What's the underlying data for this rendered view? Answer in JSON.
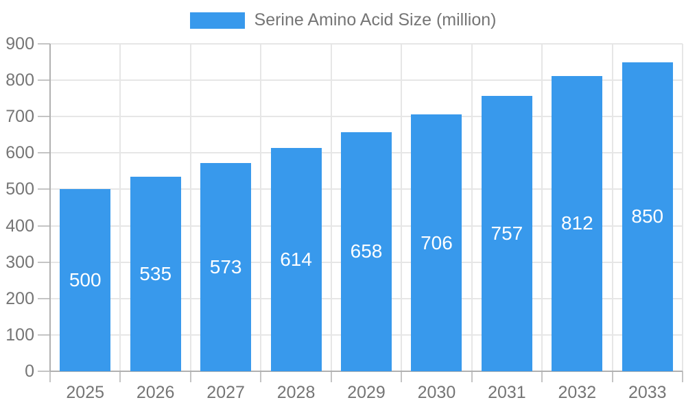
{
  "chart_data": {
    "type": "bar",
    "categories": [
      "2025",
      "2026",
      "2027",
      "2028",
      "2029",
      "2030",
      "2031",
      "2032",
      "2033"
    ],
    "series": [
      {
        "name": "Serine Amino Acid Size (million)",
        "values": [
          500,
          535,
          573,
          614,
          658,
          706,
          757,
          812,
          850
        ]
      }
    ],
    "bar_value_labels": [
      "500",
      "535",
      "573",
      "614",
      "658",
      "706",
      "757",
      "812",
      "850"
    ],
    "xlabel": "",
    "ylabel": "",
    "ylim": [
      0,
      900
    ],
    "yticks": [
      0,
      100,
      200,
      300,
      400,
      500,
      600,
      700,
      800,
      900
    ],
    "grid": true,
    "legend_position": "top-center",
    "colors": {
      "bar": "#3899ec",
      "bar_label": "#ffffff",
      "grid": "#e6e6e6",
      "axis": "#b0b0b0",
      "tick": "#c4c4c4",
      "text": "#757575",
      "background": "#ffffff"
    }
  }
}
